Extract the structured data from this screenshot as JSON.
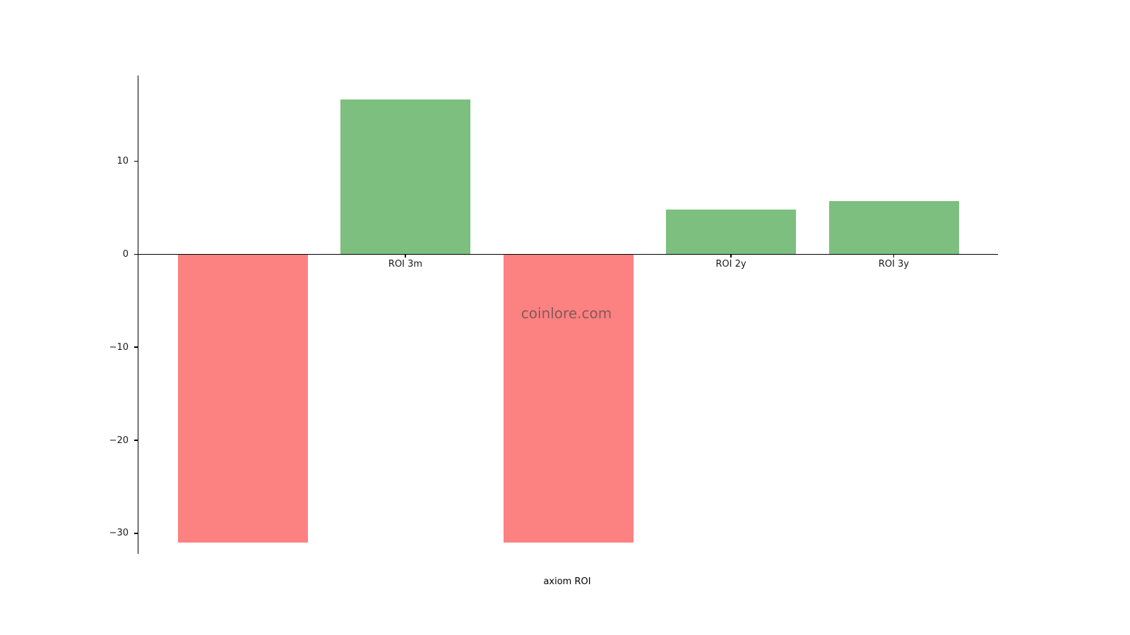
{
  "chart_data": {
    "type": "bar",
    "title": "",
    "xlabel": "axiom ROI",
    "ylabel": "",
    "watermark": "coinlore.com",
    "categories": [
      "",
      "ROI 3m",
      "",
      "ROI 2y",
      "ROI 3y"
    ],
    "values": [
      -31,
      16.6,
      -31,
      4.8,
      5.7
    ],
    "positive_color": "#7cbf7e",
    "negative_color": "#fc8181",
    "axis_color": "#000000",
    "tick_label_color": "#1a1a1a",
    "watermark_color": "rgba(68,68,68,0.65)",
    "y_ticks": [
      10,
      0,
      -10,
      -20,
      -30
    ],
    "ylim": [
      -32.2,
      19.2
    ],
    "grid": false,
    "legend": false
  }
}
